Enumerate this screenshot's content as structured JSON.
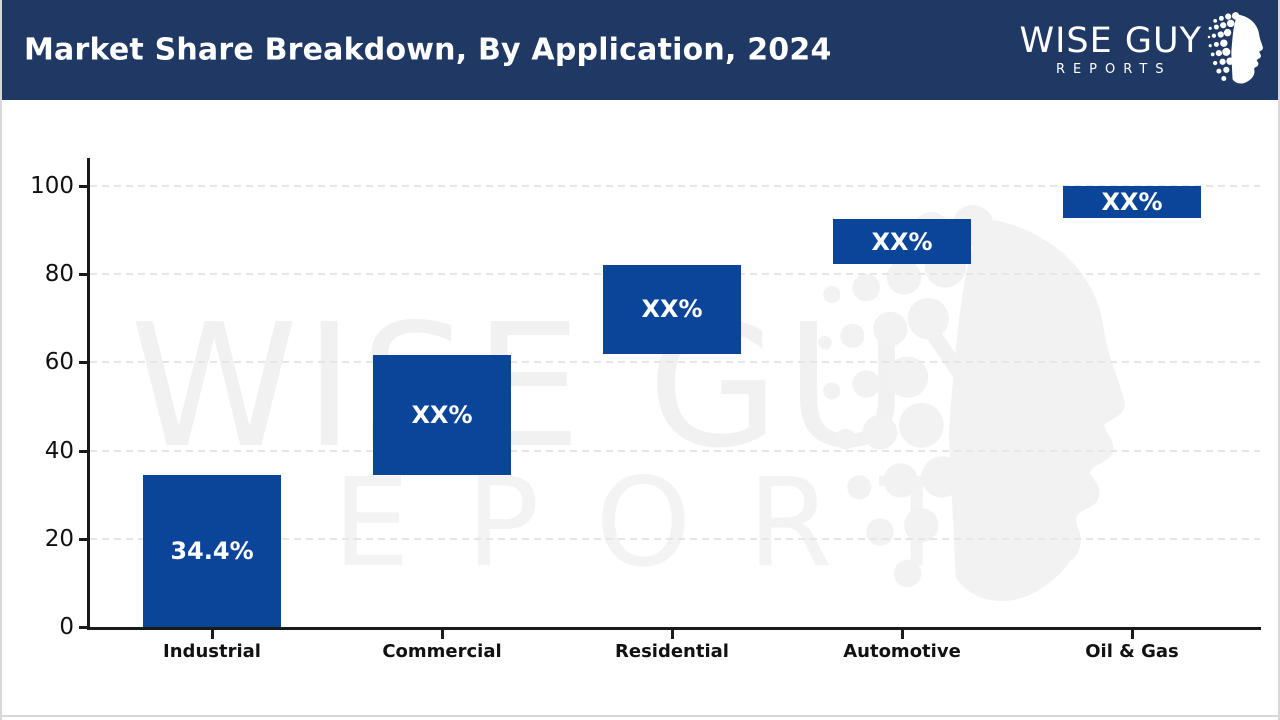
{
  "header": {
    "title": "Market Share Breakdown, By Application, 2024"
  },
  "brand": {
    "name": "WISE GUY",
    "subname": "REPORTS"
  },
  "colors": {
    "header_bg": "#203864",
    "bar": "#0b4599",
    "bar_label": "#ffffff",
    "axis": "#1a1a1a",
    "grid": "#e6e6e6",
    "watermark": "#f1f1f1",
    "page_border": "#d8d8d8"
  },
  "chart_data": {
    "type": "bar",
    "subtype": "waterfall",
    "title": "Market Share Breakdown, By Application, 2024",
    "categories": [
      "Industrial",
      "Commercial",
      "Residential",
      "Automotive",
      "Oil & Gas"
    ],
    "bars": [
      {
        "category": "Industrial",
        "start": 0,
        "end": 34.4,
        "label": "34.4%"
      },
      {
        "category": "Commercial",
        "start": 34.4,
        "end": 61.7,
        "label": "XX%"
      },
      {
        "category": "Residential",
        "start": 61.9,
        "end": 82.1,
        "label": "XX%"
      },
      {
        "category": "Automotive",
        "start": 82.2,
        "end": 92.6,
        "label": "XX%"
      },
      {
        "category": "Oil & Gas",
        "start": 92.7,
        "end": 100,
        "label": "XX%"
      }
    ],
    "y_ticks": [
      0,
      20,
      40,
      60,
      80,
      100
    ],
    "ylim": [
      0,
      105
    ],
    "xlabel": "",
    "ylabel": "",
    "grid": "horizontal-dashed",
    "legend": "none",
    "bar_color": "#0b4599",
    "value_label_position": "inside-center"
  }
}
